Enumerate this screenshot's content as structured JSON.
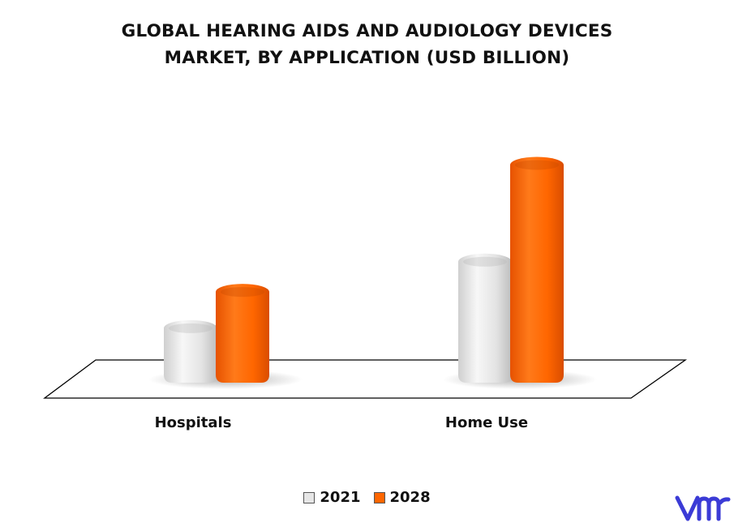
{
  "chart_data": {
    "type": "bar",
    "title_line1": "GLOBAL HEARING AIDS AND AUDIOLOGY DEVICES",
    "title_line2": "MARKET, BY APPLICATION (USD BILLION)",
    "categories": [
      "Hospitals",
      "Home Use"
    ],
    "series": [
      {
        "name": "2021",
        "values": [
          1.8,
          4.0
        ],
        "color": "#e6e6e6"
      },
      {
        "name": "2028",
        "values": [
          3.0,
          7.2
        ],
        "color": "#ff6600"
      }
    ],
    "xlabel": "",
    "ylabel": "",
    "ylim": [
      0,
      8
    ],
    "grid": false,
    "legend_position": "bottom"
  },
  "logo": {
    "color": "#3b3bd6",
    "icon": "vmr-logo-icon"
  }
}
